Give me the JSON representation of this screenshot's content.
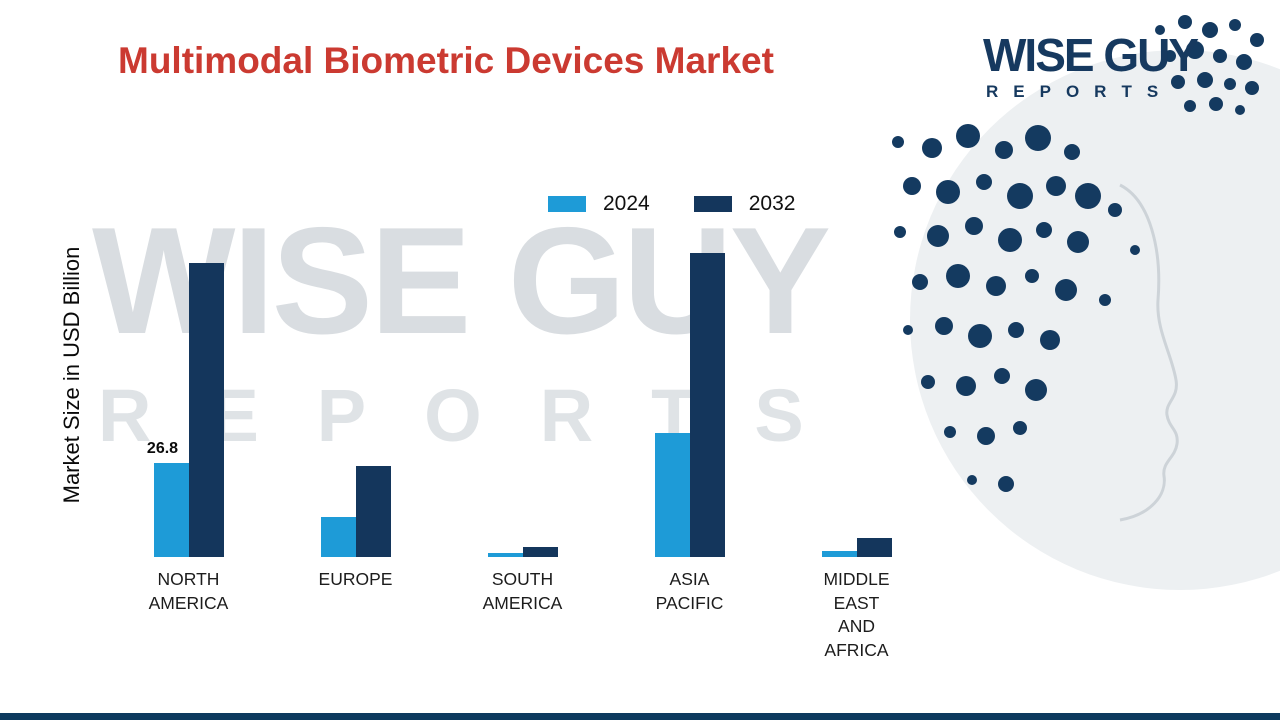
{
  "title": "Multimodal Biometric Devices Market",
  "brand": {
    "name": "WISE GUY",
    "subtitle": "REPORTS"
  },
  "watermark": {
    "line1": "WISE GUY",
    "line2": "REPORTS"
  },
  "y_axis_label": "Market Size in USD Billion",
  "chart_data": {
    "type": "bar",
    "title": "Multimodal Biometric Devices Market",
    "ylabel": "Market Size in USD Billion",
    "categories": [
      "NORTH\nAMERICA",
      "EUROPE",
      "SOUTH\nAMERICA",
      "ASIA\nPACIFIC",
      "MIDDLE\nEAST\nAND\nAFRICA"
    ],
    "series": [
      {
        "name": "2024",
        "color": "#1e9bd7",
        "values": [
          26.8,
          11.5,
          1.2,
          35.5,
          1.8
        ]
      },
      {
        "name": "2032",
        "color": "#14365c",
        "values": [
          84,
          26,
          3,
          87,
          5.5
        ]
      }
    ],
    "annotations": [
      {
        "category_index": 0,
        "series": "2024",
        "text": "26.8"
      }
    ],
    "ylim": [
      0,
      95
    ],
    "grid": false,
    "legend_position": "top"
  }
}
